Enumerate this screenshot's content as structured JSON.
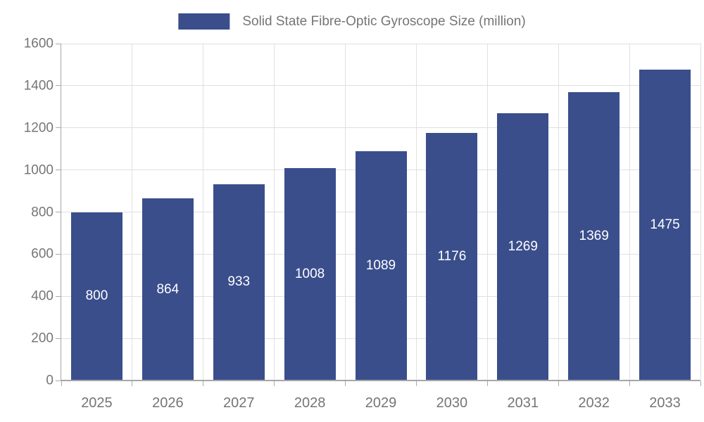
{
  "legend": {
    "label": "Solid State Fibre-Optic Gyroscope Size (million)"
  },
  "colors": {
    "bar": "#3A4E8C",
    "grid": "#E0E0E0",
    "axis": "#A6A6A6",
    "tick": "#AAAAAA",
    "text": "#757575",
    "value_label": "#FFFFFF",
    "background": "#FFFFFF"
  },
  "chart_data": {
    "type": "bar",
    "title": "Solid State Fibre-Optic Gyroscope Size (million)",
    "categories": [
      "2025",
      "2026",
      "2027",
      "2028",
      "2029",
      "2030",
      "2031",
      "2032",
      "2033"
    ],
    "values": [
      800,
      864,
      933,
      1008,
      1089,
      1176,
      1269,
      1369,
      1475
    ],
    "series": [
      {
        "name": "Solid State Fibre-Optic Gyroscope Size (million)",
        "values": [
          800,
          864,
          933,
          1008,
          1089,
          1176,
          1269,
          1369,
          1475
        ]
      }
    ],
    "xlabel": "",
    "ylabel": "",
    "ylim": [
      0,
      1600
    ],
    "y_ticks": [
      0,
      200,
      400,
      600,
      800,
      1000,
      1200,
      1400,
      1600
    ],
    "grid": true,
    "legend_position": "top",
    "value_label_position": "inside-center"
  }
}
